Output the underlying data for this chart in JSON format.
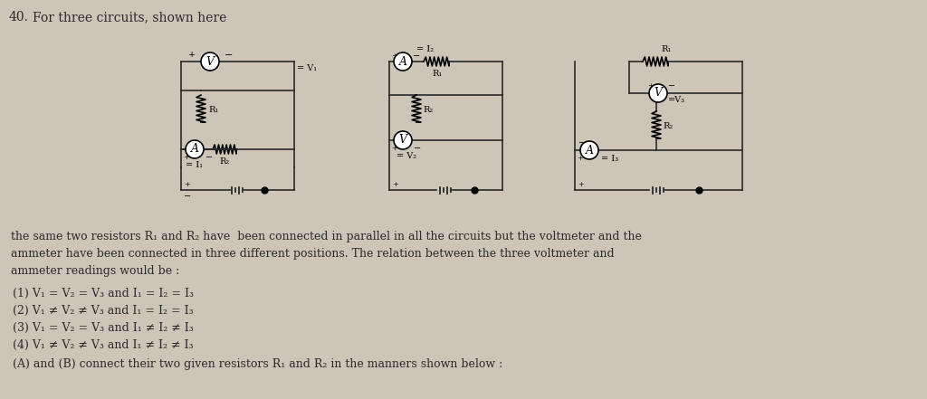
{
  "background_color": "#ccc5b8",
  "page_number": "40.",
  "title": "For three circuits, shown here",
  "paragraph": "the same two resistors R₁ and R₂ have  been connected in parallel in all the circuits but the voltmeter and the\nammeter have been connected in three different positions. The relation between the three voltmeter and\nammeter readings would be :",
  "options": [
    "(1) V₁ = V₂ = V₃ and I₁ = I₂ = I₃",
    "(2) V₁ ≠ V₂ ≠ V₃ and I₁ = I₂ = I₃",
    "(3) V₁ = V₂ = V₃ and I₁ ≠ I₂ ≠ I₃",
    "(4) V₁ ≠ V₂ ≠ V₃ and I₁ ≠ I₂ ≠ I₃"
  ],
  "last_line": "(A) and (B) connect their two given resistors R₁ and R₂ in the manners shown below :"
}
